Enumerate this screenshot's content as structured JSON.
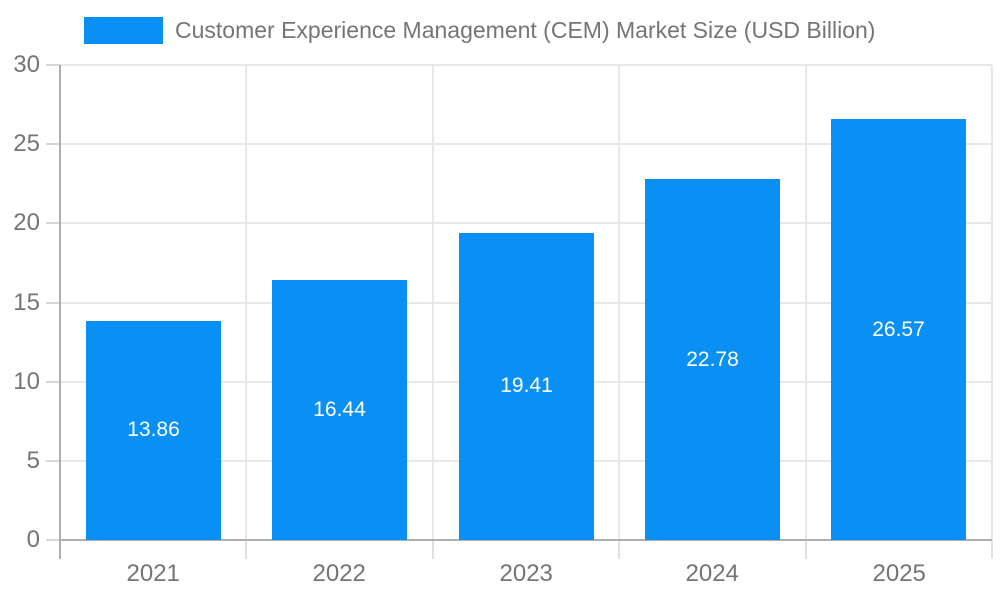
{
  "chart": {
    "colors": {
      "bar": "#0a90f5",
      "label_text": "#757575",
      "value_text": "#ffffff",
      "axis_line": "#aeaeae",
      "gridline": "#e8e8e8",
      "background": "#ffffff"
    }
  },
  "chart_data": {
    "type": "bar",
    "title": "Customer Experience Management (CEM) Market Size (USD Billion)",
    "categories": [
      "2021",
      "2022",
      "2023",
      "2024",
      "2025"
    ],
    "values": [
      13.86,
      16.44,
      19.41,
      22.78,
      26.57
    ],
    "value_labels": [
      "13.86",
      "16.44",
      "19.41",
      "22.78",
      "26.57"
    ],
    "series_name": "Customer Experience Management (CEM) Market Size (USD Billion)",
    "xlabel": "",
    "ylabel": "",
    "ylim": [
      0,
      30
    ],
    "yticks": [
      0,
      5,
      10,
      15,
      20,
      25,
      30
    ],
    "grid": true,
    "legend_position": "top",
    "value_label_position": "inside-center"
  }
}
